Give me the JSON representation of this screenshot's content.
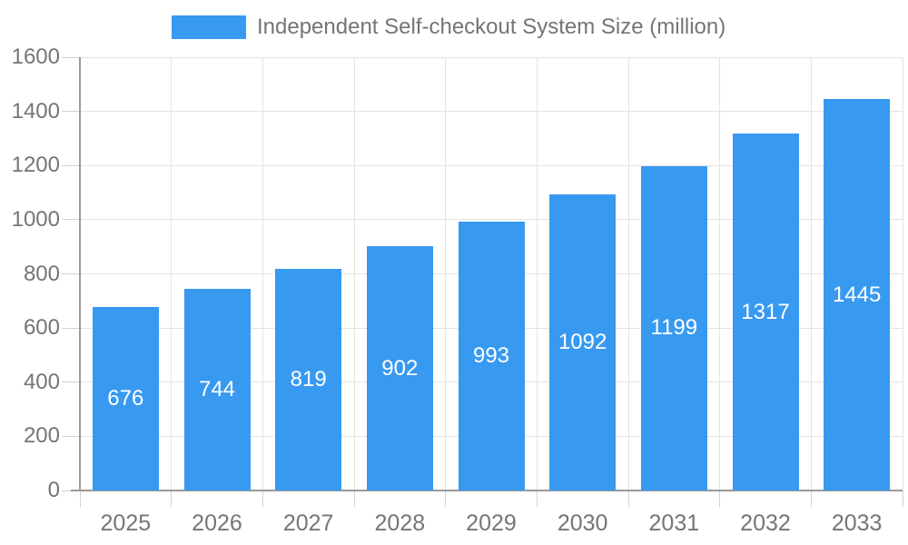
{
  "chart_data": {
    "type": "bar",
    "title": "Independent Self-checkout System Size (million)",
    "legend": {
      "label": "Independent Self-checkout System Size (million)",
      "position": "top"
    },
    "categories": [
      "2025",
      "2026",
      "2027",
      "2028",
      "2029",
      "2030",
      "2031",
      "2032",
      "2033"
    ],
    "series": [
      {
        "name": "Independent Self-checkout System Size (million)",
        "values": [
          676,
          744,
          819,
          902,
          993,
          1092,
          1199,
          1317,
          1445
        ]
      }
    ],
    "value_labels_shown": true,
    "xlabel": "",
    "ylabel": "",
    "ylim": [
      0,
      1600
    ],
    "ytick_step": 200,
    "yticks": [
      0,
      200,
      400,
      600,
      800,
      1000,
      1200,
      1400,
      1600
    ],
    "grid": true,
    "colors": {
      "bar": "#3899F0",
      "value_label": "#FFFFFF",
      "axis_text": "#757575",
      "legend_text": "#757575",
      "gridline": "#E3E3E3",
      "tick": "#D2D2D2",
      "axis_line": "#9A9A9A",
      "background": "#FFFFFF"
    }
  }
}
